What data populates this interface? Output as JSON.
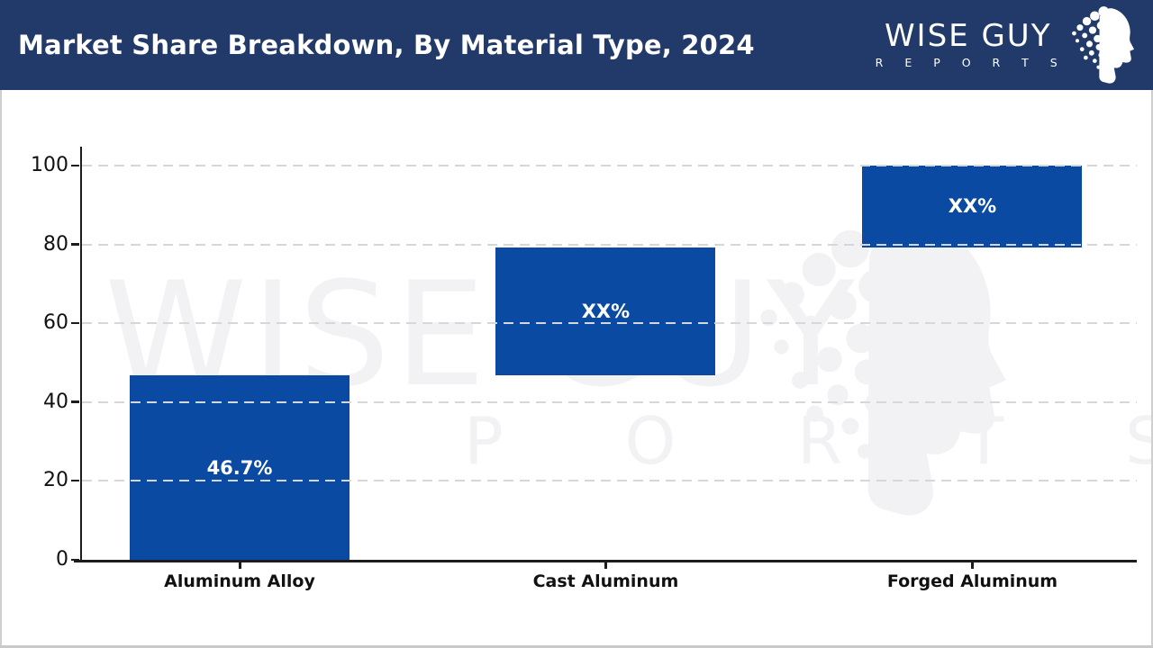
{
  "page": {
    "background": "#ffffff",
    "edge_line_color": "#cccccc"
  },
  "header": {
    "background_color": "#223a6a",
    "title": "Market Share Breakdown, By Material Type, 2024",
    "logo": {
      "line1": "WISE GUY",
      "line2": "R E P O R T S"
    }
  },
  "watermark": {
    "line1": "WISE GUY",
    "line2": "R E P O R T S"
  },
  "chart_data": {
    "type": "bar",
    "subtype": "waterfall",
    "title": "Market Share Breakdown, By Material Type, 2024",
    "categories": [
      "Aluminum Alloy",
      "Cast Aluminum",
      "Forged Aluminum"
    ],
    "segments": [
      {
        "category": "Aluminum Alloy",
        "start": 0,
        "end": 46.7,
        "value_label": "46.7%",
        "value_estimate": 46.7
      },
      {
        "category": "Cast Aluminum",
        "start": 46.7,
        "end": 79.3,
        "value_label": "XX%",
        "value_estimate": 32.6
      },
      {
        "category": "Forged Aluminum",
        "start": 79.3,
        "end": 100,
        "value_label": "XX%",
        "value_estimate": 20.7
      }
    ],
    "y_ticks": [
      0,
      20,
      40,
      60,
      80,
      100
    ],
    "ylim": [
      0,
      105.5
    ],
    "xlabel": "",
    "ylabel": "",
    "grid": "horizontal-dashed",
    "legend": "none",
    "bar_color": "#0b4aa2",
    "bar_label_color": "#ffffff",
    "axis_color": "#1c1c1c",
    "grid_color": "#d7d7d9"
  }
}
